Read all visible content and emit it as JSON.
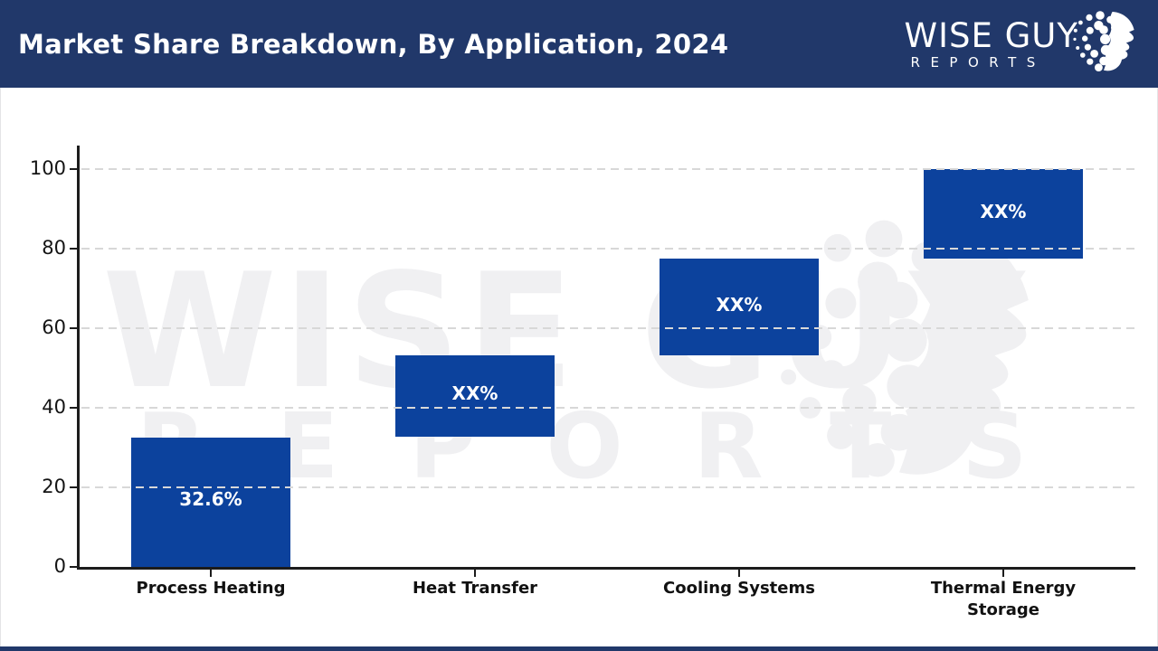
{
  "header": {
    "title": "Market Share Breakdown, By Application, 2024",
    "logo": {
      "line1": "WISE GUY",
      "line2": "REPORTS"
    }
  },
  "watermark": {
    "line1": "WISE GUY",
    "line2": "REPORTS"
  },
  "colors": {
    "header_bg": "#21386a",
    "bar": "#0c429d",
    "grid": "#d8d8d8",
    "axis": "#1c1c1c",
    "watermark": "#f0f0f2",
    "value_label": "#ffffff"
  },
  "chart_data": {
    "type": "bar",
    "subtype": "waterfall",
    "title": "Market Share Breakdown, By Application, 2024",
    "categories": [
      "Process Heating",
      "Heat Transfer",
      "Cooling Systems",
      "Thermal Energy Storage"
    ],
    "series": [
      {
        "name": "Market share (%)",
        "segments": [
          {
            "category": "Process Heating",
            "start": 0,
            "end": 32.6,
            "label": "32.6%"
          },
          {
            "category": "Heat Transfer",
            "start": 32.6,
            "end": 53.2,
            "label": "XX%"
          },
          {
            "category": "Cooling Systems",
            "start": 53.2,
            "end": 77.5,
            "label": "XX%"
          },
          {
            "category": "Thermal Energy Storage",
            "start": 77.5,
            "end": 100,
            "label": "XX%"
          }
        ]
      }
    ],
    "xlabel": "",
    "ylabel": "",
    "ylim": [
      0,
      100
    ],
    "yticks": [
      0,
      20,
      40,
      60,
      80,
      100
    ],
    "grid": "horizontal-dashed",
    "legend": "none",
    "bar_color": "#0c429d",
    "value_label_color": "#ffffff"
  }
}
